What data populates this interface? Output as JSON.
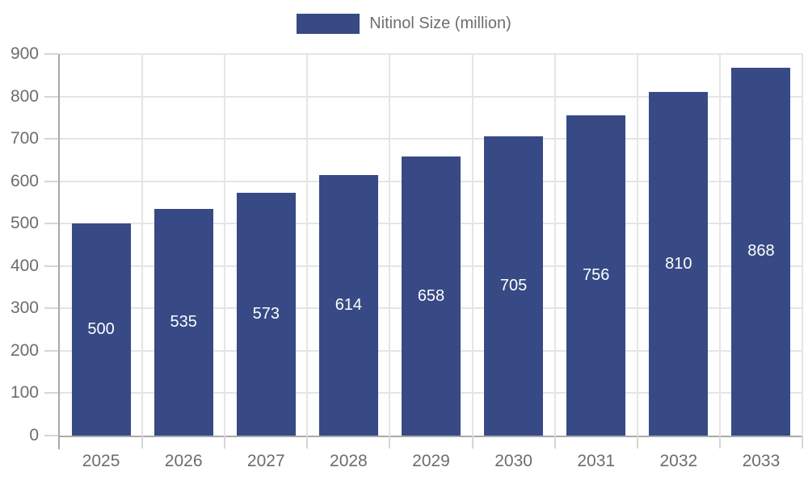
{
  "chart_data": {
    "type": "bar",
    "title": "",
    "categories": [
      "2025",
      "2026",
      "2027",
      "2028",
      "2029",
      "2030",
      "2031",
      "2032",
      "2033"
    ],
    "series": [
      {
        "name": "Nitinol Size (million)",
        "values": [
          500,
          535,
          573,
          614,
          658,
          705,
          756,
          810,
          868
        ],
        "color": "#374a85"
      }
    ],
    "xlabel": "",
    "ylabel": "",
    "ylim": [
      0,
      900
    ],
    "ytick_step": 100,
    "yticks": [
      0,
      100,
      200,
      300,
      400,
      500,
      600,
      700,
      800,
      900
    ],
    "grid": true,
    "legend_position": "top",
    "value_labels": "inside-center",
    "value_label_color": "#ffffff"
  },
  "styles": {
    "bar_color": "#374a85",
    "grid_color": "#e5e5e5",
    "axis_color": "#a9a9a9",
    "tick_color": "#d6d6d6",
    "tick_label_color": "#6d6d6d",
    "legend_text_color": "#6e6e6e",
    "background": "#ffffff"
  }
}
